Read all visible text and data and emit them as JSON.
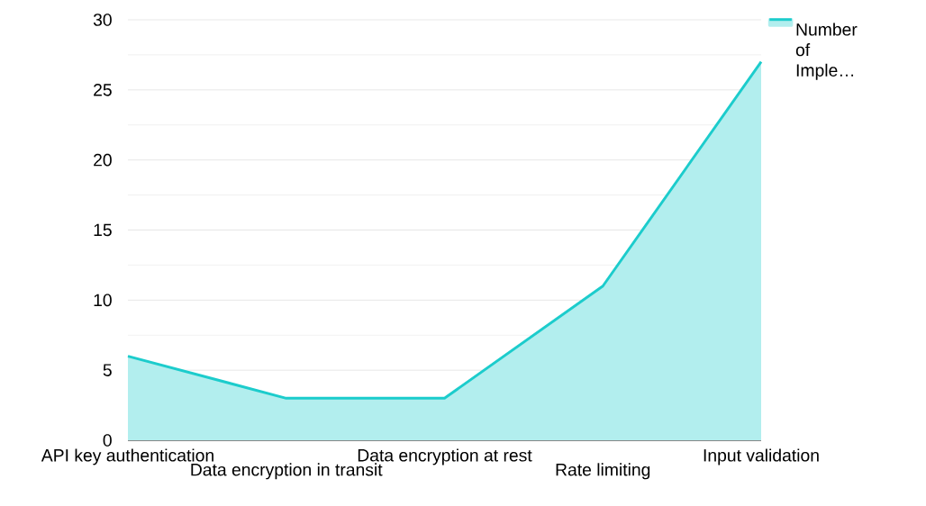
{
  "chart_data": {
    "type": "area",
    "categories": [
      "API key authentication",
      "Data encryption in transit",
      "Data encryption at rest",
      "Rate limiting",
      "Input validation"
    ],
    "series": [
      {
        "name": "Number of Imple…",
        "color": "#1ccccc",
        "values": [
          6,
          3,
          3,
          11,
          27
        ]
      }
    ],
    "ylim": [
      0,
      30
    ],
    "yticks": [
      0,
      5,
      10,
      15,
      20,
      25,
      30
    ],
    "grid": "y",
    "legend": "top right"
  }
}
